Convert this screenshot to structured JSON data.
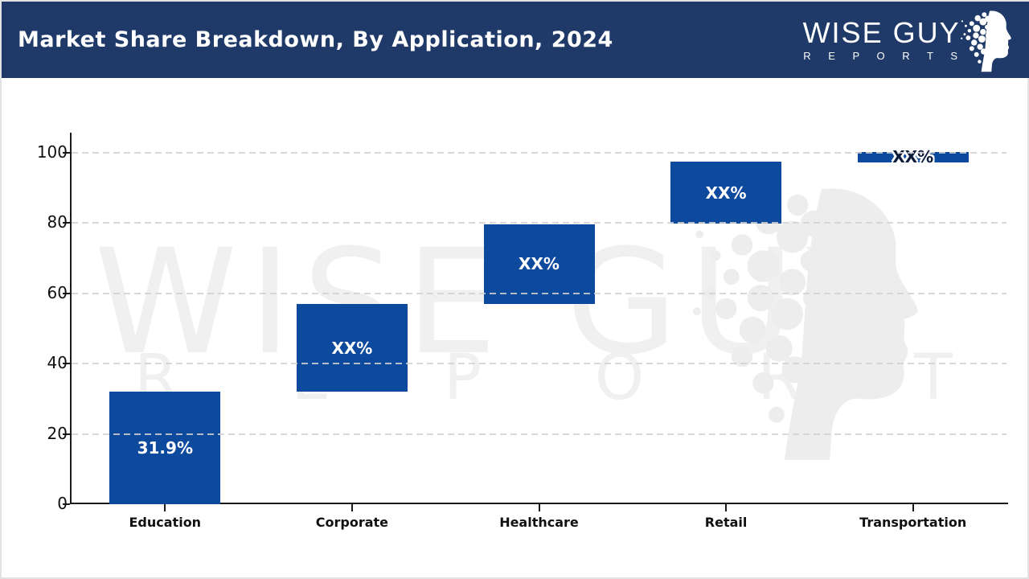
{
  "header": {
    "title": "Market Share Breakdown, By Application, 2024",
    "logo": {
      "line1": "WISE GUY",
      "line2": "R E P O R T S"
    },
    "background_color": "#1f3a68"
  },
  "watermark": {
    "line1": "WISE GUY",
    "line2": "R E P O R T S"
  },
  "chart_data": {
    "type": "bar",
    "subtype": "waterfall",
    "title": "Market Share Breakdown, By Application, 2024",
    "xlabel": "",
    "ylabel": "",
    "categories": [
      "Education",
      "Corporate",
      "Healthcare",
      "Retail",
      "Transportation"
    ],
    "segments": [
      {
        "category": "Education",
        "start": 0,
        "end": 31.9,
        "value": 31.9,
        "label": "31.9%",
        "label_style": "light"
      },
      {
        "category": "Corporate",
        "start": 31.9,
        "end": 56.9,
        "value": 25.0,
        "label": "XX%",
        "label_style": "light"
      },
      {
        "category": "Healthcare",
        "start": 56.9,
        "end": 79.6,
        "value": 22.7,
        "label": "XX%",
        "label_style": "light"
      },
      {
        "category": "Retail",
        "start": 79.7,
        "end": 97.3,
        "value": 17.6,
        "label": "XX%",
        "label_style": "light"
      },
      {
        "category": "Transportation",
        "start": 97.2,
        "end": 100.2,
        "value": 3.0,
        "label": "XX%",
        "label_style": "dark"
      }
    ],
    "yticks": [
      0,
      20,
      40,
      60,
      80,
      100
    ],
    "ylim": [
      0,
      104
    ],
    "bar_color": "#0d4a9e",
    "grid": {
      "axis": "y",
      "style": "dashed",
      "color": "#d2d2d2",
      "on": true
    },
    "legend": null
  }
}
